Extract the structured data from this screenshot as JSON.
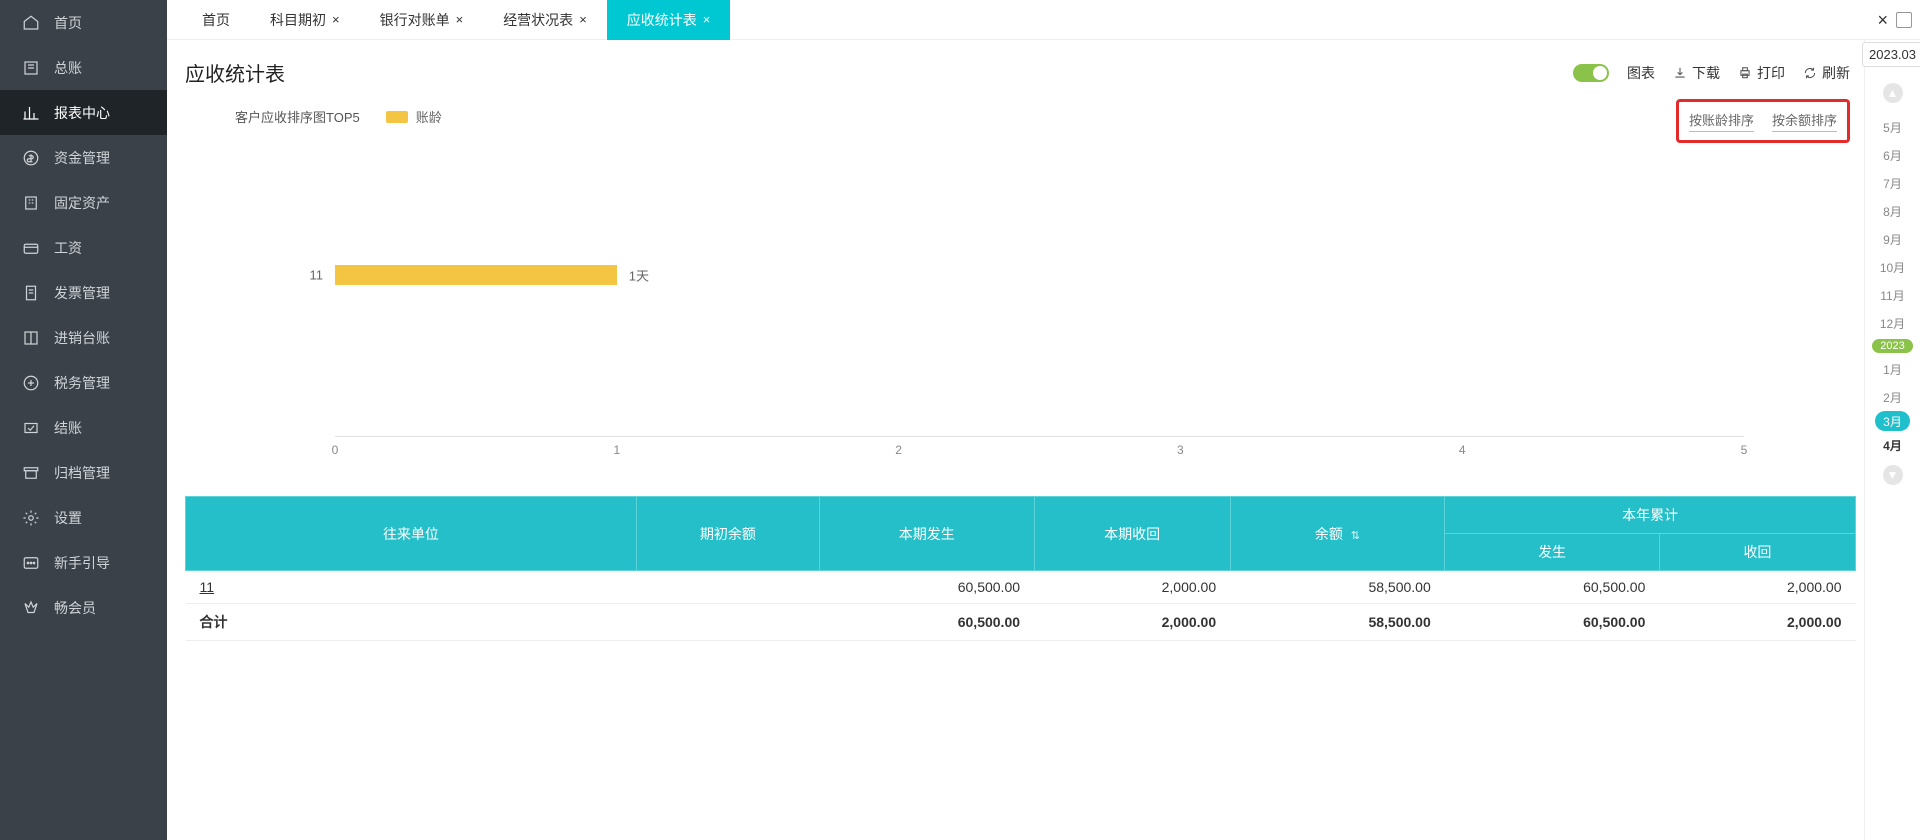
{
  "sidebar": {
    "items": [
      {
        "label": "首页",
        "icon": "home"
      },
      {
        "label": "总账",
        "icon": "ledger"
      },
      {
        "label": "报表中心",
        "icon": "chart",
        "active": true
      },
      {
        "label": "资金管理",
        "icon": "money"
      },
      {
        "label": "固定资产",
        "icon": "building"
      },
      {
        "label": "工资",
        "icon": "wallet"
      },
      {
        "label": "发票管理",
        "icon": "receipt"
      },
      {
        "label": "进销台账",
        "icon": "book"
      },
      {
        "label": "税务管理",
        "icon": "tax"
      },
      {
        "label": "结账",
        "icon": "checkout"
      },
      {
        "label": "归档管理",
        "icon": "archive"
      },
      {
        "label": "设置",
        "icon": "gear"
      },
      {
        "label": "新手引导",
        "icon": "guide"
      },
      {
        "label": "畅会员",
        "icon": "vip"
      }
    ]
  },
  "tabs": {
    "static": [
      {
        "label": "首页"
      }
    ],
    "closable": [
      {
        "label": "科目期初"
      },
      {
        "label": "银行对账单"
      },
      {
        "label": "经营状况表"
      },
      {
        "label": "应收统计表",
        "active": true
      }
    ]
  },
  "page": {
    "title": "应收统计表",
    "toggle_label": "图表",
    "toggle_on": true,
    "toggle_color": "#8bc34a",
    "actions": [
      {
        "label": "下载",
        "icon": "download"
      },
      {
        "label": "打印",
        "icon": "print"
      },
      {
        "label": "刷新",
        "icon": "refresh"
      }
    ]
  },
  "chart": {
    "subtitle": "客户应收排序图TOP5",
    "legend": {
      "label": "账龄",
      "color": "#f4c542"
    },
    "sort_buttons": [
      "按账龄排序",
      "按余额排序"
    ],
    "type": "horizontal-bar",
    "x_ticks": [
      "0",
      "1",
      "2",
      "3",
      "4",
      "5"
    ],
    "xmax": 5,
    "bars": [
      {
        "left_label": "11",
        "value": 1,
        "right_label": "1天",
        "color": "#f4c542",
        "y_pct": 41
      }
    ],
    "axis_color": "#e0e0e0",
    "tick_font_color": "#888"
  },
  "table": {
    "header_bg": "#24bfc9",
    "header_border": "#5dd3da",
    "columns": {
      "c1": "往来单位",
      "c2": "期初余额",
      "c3": "本期发生",
      "c4": "本期收回",
      "c5": "余额",
      "c5_sort": "⇅",
      "group": "本年累计",
      "c6": "发生",
      "c7": "收回"
    },
    "rows": [
      {
        "unit": "11",
        "opening": "",
        "occur": "60,500.00",
        "recover": "2,000.00",
        "balance": "58,500.00",
        "y_occur": "60,500.00",
        "y_recover": "2,000.00",
        "link": true
      }
    ],
    "total": {
      "unit": "合计",
      "opening": "",
      "occur": "60,500.00",
      "recover": "2,000.00",
      "balance": "58,500.00",
      "y_occur": "60,500.00",
      "y_recover": "2,000.00"
    }
  },
  "timeline": {
    "year_label": "2023.03",
    "year_badge": "2023",
    "months": [
      {
        "label": "5月"
      },
      {
        "label": "6月"
      },
      {
        "label": "7月"
      },
      {
        "label": "8月"
      },
      {
        "label": "9月"
      },
      {
        "label": "10月"
      },
      {
        "label": "11月"
      },
      {
        "label": "12月"
      },
      {
        "badge": true
      },
      {
        "label": "1月"
      },
      {
        "label": "2月"
      },
      {
        "label": "3月",
        "active": true
      },
      {
        "label": "4月",
        "dark": true
      }
    ]
  }
}
